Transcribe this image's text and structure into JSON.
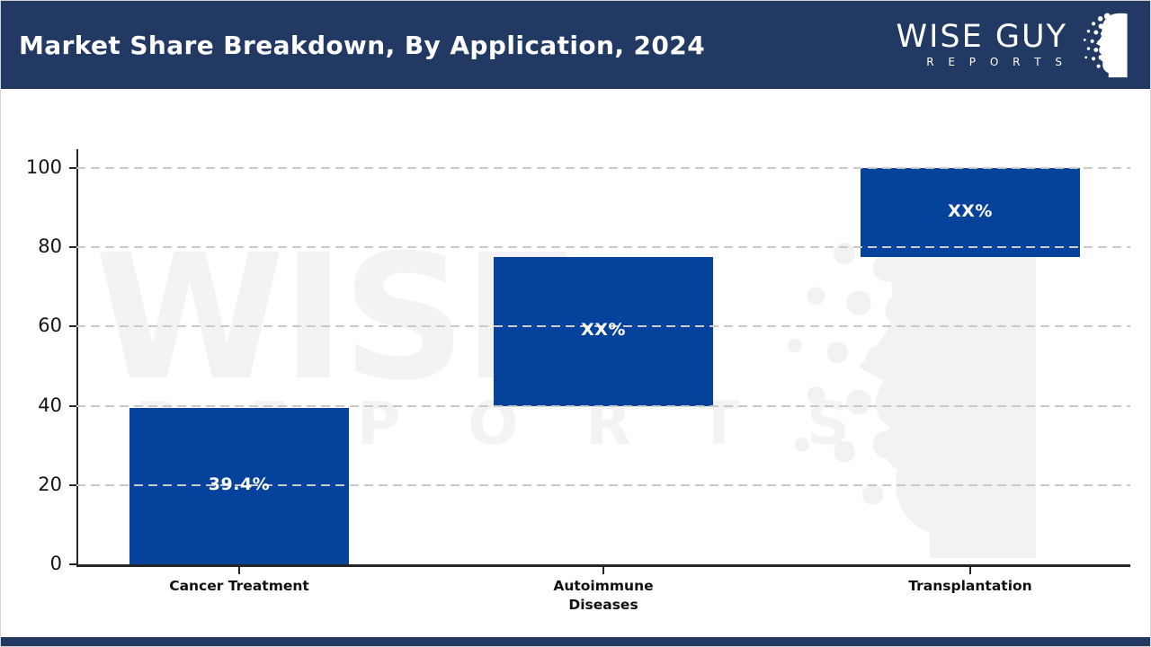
{
  "header": {
    "title": "Market Share Breakdown, By Application, 2024",
    "logo": {
      "line1": "WISE GUY",
      "line2": "R E P O R T S"
    }
  },
  "watermark": {
    "line1": "WISE",
    "line2": "R E P O R T S"
  },
  "footer": {},
  "colors": {
    "header_navy": "#213963",
    "bar_blue": "#05429c",
    "gridline_gray": "#c9c9c9",
    "axis_dark": "#262626",
    "watermark_gray": "#f3f3f5"
  },
  "chart_data": {
    "type": "bar",
    "subtype": "waterfall",
    "title": "Market Share Breakdown, By Application, 2024",
    "categories": [
      "Cancer Treatment",
      "Autoimmune\nDiseases",
      "Transplantation"
    ],
    "segments": [
      {
        "category": "Cancer Treatment",
        "start": 0,
        "end": 39.4,
        "label": "39.4%"
      },
      {
        "category": "Autoimmune\nDiseases",
        "start": 40,
        "end": 77.5,
        "label": "XX%"
      },
      {
        "category": "Transplantation",
        "start": 77.5,
        "end": 100,
        "label": "XX%"
      }
    ],
    "xlabel": "",
    "ylabel": "",
    "ylim": [
      0,
      104.5
    ],
    "yticks": [
      0,
      20,
      40,
      60,
      80,
      100
    ],
    "grid": "horizontal-dashed",
    "legend": "none",
    "bar_color": "#05429c",
    "value_label_color": "#ffffff"
  }
}
